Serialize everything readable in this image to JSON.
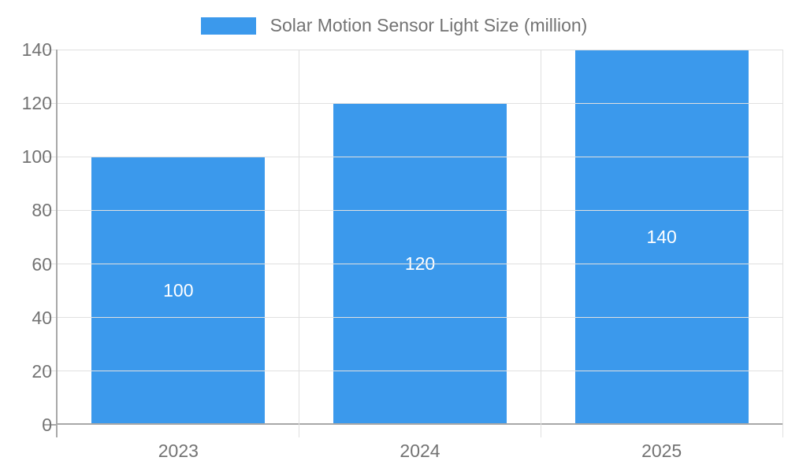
{
  "chart_data": {
    "type": "bar",
    "title": "Solar Motion Sensor Light Size (million)",
    "series_name": "Solar Motion Sensor Light Size (million)",
    "categories": [
      "2023",
      "2024",
      "2025"
    ],
    "values": [
      100,
      120,
      140
    ],
    "data_labels": [
      "100",
      "120",
      "140"
    ],
    "xlabel": "",
    "ylabel": "",
    "ylim": [
      0,
      140
    ],
    "ytick_step": 20,
    "yticks": [
      0,
      20,
      40,
      60,
      80,
      100,
      120,
      140
    ],
    "grid": true,
    "legend_position": "top-center",
    "colors": {
      "bar": "#3b99ec",
      "data_label": "#ffffff",
      "axis": "#a8a8a8",
      "gridline": "#e0e0e0",
      "text": "#737373",
      "background": "#ffffff"
    }
  }
}
